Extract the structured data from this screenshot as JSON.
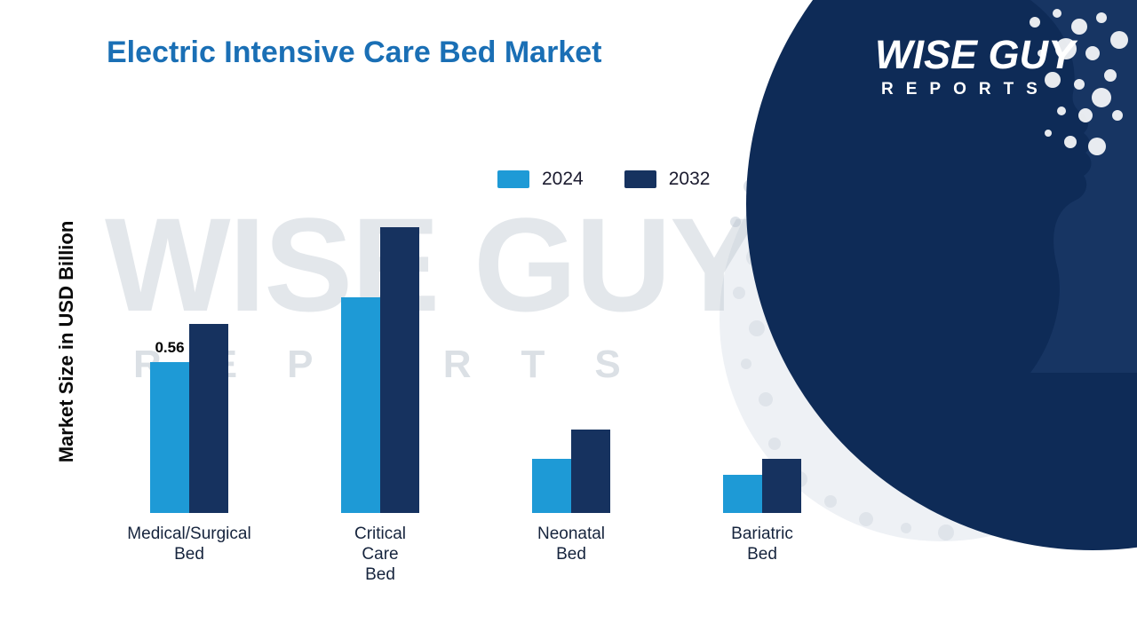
{
  "page": {
    "title": "Electric Intensive Care Bed Market"
  },
  "logo": {
    "line1": "WISE GUY",
    "line2": "REPORTS"
  },
  "watermark": {
    "line1": "WISE GUY",
    "line2": "REPORTS"
  },
  "colors": {
    "title_blue": "#1a6fb5",
    "navy_blob": "#0e2b57",
    "bar_2024": "#1e9ad6",
    "bar_2032": "#16325f",
    "watermark_gray": "#eef1f5"
  },
  "chart_data": {
    "type": "bar",
    "title": "Electric Intensive Care Bed Market",
    "xlabel": "",
    "ylabel": "Market Size in USD Billion",
    "categories": [
      "Medical/Surgical Bed",
      "Critical Care Bed",
      "Neonatal Bed",
      "Bariatric Bed"
    ],
    "category_label_lines": [
      [
        "Medical/Surgical",
        "Bed"
      ],
      [
        "Critical",
        "Care",
        "Bed"
      ],
      [
        "Neonatal",
        "Bed"
      ],
      [
        "Bariatric",
        "Bed"
      ]
    ],
    "series": [
      {
        "name": "2024",
        "color": "#1e9ad6",
        "values": [
          0.56,
          0.8,
          0.2,
          0.14
        ]
      },
      {
        "name": "2032",
        "color": "#16325f",
        "values": [
          0.7,
          1.06,
          0.31,
          0.2
        ]
      }
    ],
    "value_labels": [
      {
        "category_index": 0,
        "series": "2024",
        "text": "0.56"
      }
    ],
    "ylim": [
      0,
      1.2
    ],
    "grid": false,
    "legend_position": "top-center"
  }
}
